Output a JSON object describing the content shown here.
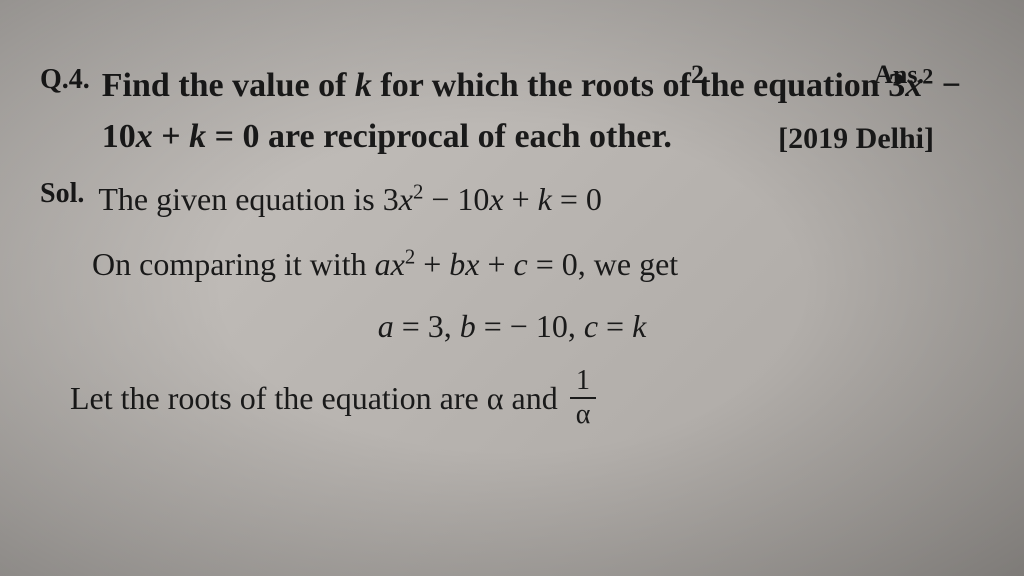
{
  "header": {
    "top_num": "2",
    "ans_label": "Ans."
  },
  "question": {
    "number": "Q.4.",
    "text_part1": "Find the value of ",
    "var_k": "k",
    "text_part2": " for which the roots of the equation ",
    "eq1_a": "3",
    "eq1_x2": "x",
    "eq1_mid": " − 10",
    "eq1_x": "x",
    "eq1_plus": " + ",
    "eq1_k": "k",
    "eq1_end": " = 0 are reciprocal of each other.",
    "source": "[2019 Delhi]"
  },
  "solution": {
    "label": "Sol.",
    "line1_a": "The given equation is ",
    "line1_eq_a": "3",
    "line1_x2": "x",
    "line1_mid": " − 10",
    "line1_x": "x",
    "line1_plus": " + ",
    "line1_k": "k",
    "line1_end": " = 0",
    "line2_a": "On comparing it with ",
    "line2_ax": "a",
    "line2_x2": "x",
    "line2_plus1": " + ",
    "line2_bx": "b",
    "line2_x": "x",
    "line2_plus2": " + ",
    "line2_c": "c",
    "line2_end": " = 0, we get",
    "line3_a": "a",
    "line3_eq1": " = 3, ",
    "line3_b": "b",
    "line3_eq2": " = − 10, ",
    "line3_c": "c",
    "line3_eq3": " = ",
    "line3_k": "k",
    "line4_a": "Let the roots of the equation are α and ",
    "frac_num": "1",
    "frac_den": "α"
  }
}
